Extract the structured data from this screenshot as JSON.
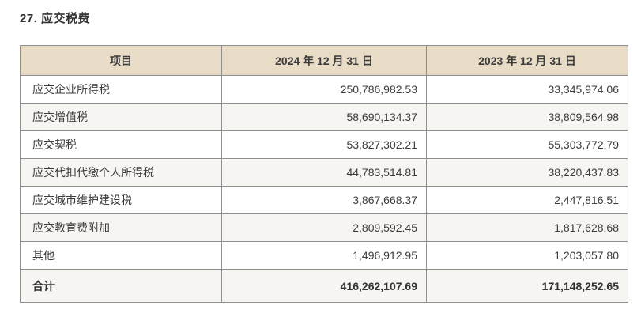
{
  "title": "27. 应交税费",
  "table": {
    "headers": {
      "item": "项目",
      "col2024": "2024 年 12 月 31 日",
      "col2023": "2023 年 12 月 31 日"
    },
    "rows": [
      {
        "item": "应交企业所得税",
        "y2024": "250,786,982.53",
        "y2023": "33,345,974.06"
      },
      {
        "item": "应交增值税",
        "y2024": "58,690,134.37",
        "y2023": "38,809,564.98"
      },
      {
        "item": "应交契税",
        "y2024": "53,827,302.21",
        "y2023": "55,303,772.79"
      },
      {
        "item": "应交代扣代缴个人所得税",
        "y2024": "44,783,514.81",
        "y2023": "38,220,437.83"
      },
      {
        "item": "应交城市维护建设税",
        "y2024": "3,867,668.37",
        "y2023": "2,447,816.51"
      },
      {
        "item": "应交教育费附加",
        "y2024": "2,809,592.45",
        "y2023": "1,817,628.68"
      },
      {
        "item": "其他",
        "y2024": "1,496,912.95",
        "y2023": "1,203,057.80"
      }
    ],
    "total": {
      "item": "合计",
      "y2024": "416,262,107.69",
      "y2023": "171,148,252.65"
    }
  },
  "colors": {
    "header_bg": "#e9dcc6",
    "stripe_bg": "#f7f5f1",
    "row_bg": "#ffffff",
    "border": "#8f8f8f",
    "text": "#3b3b3b"
  }
}
